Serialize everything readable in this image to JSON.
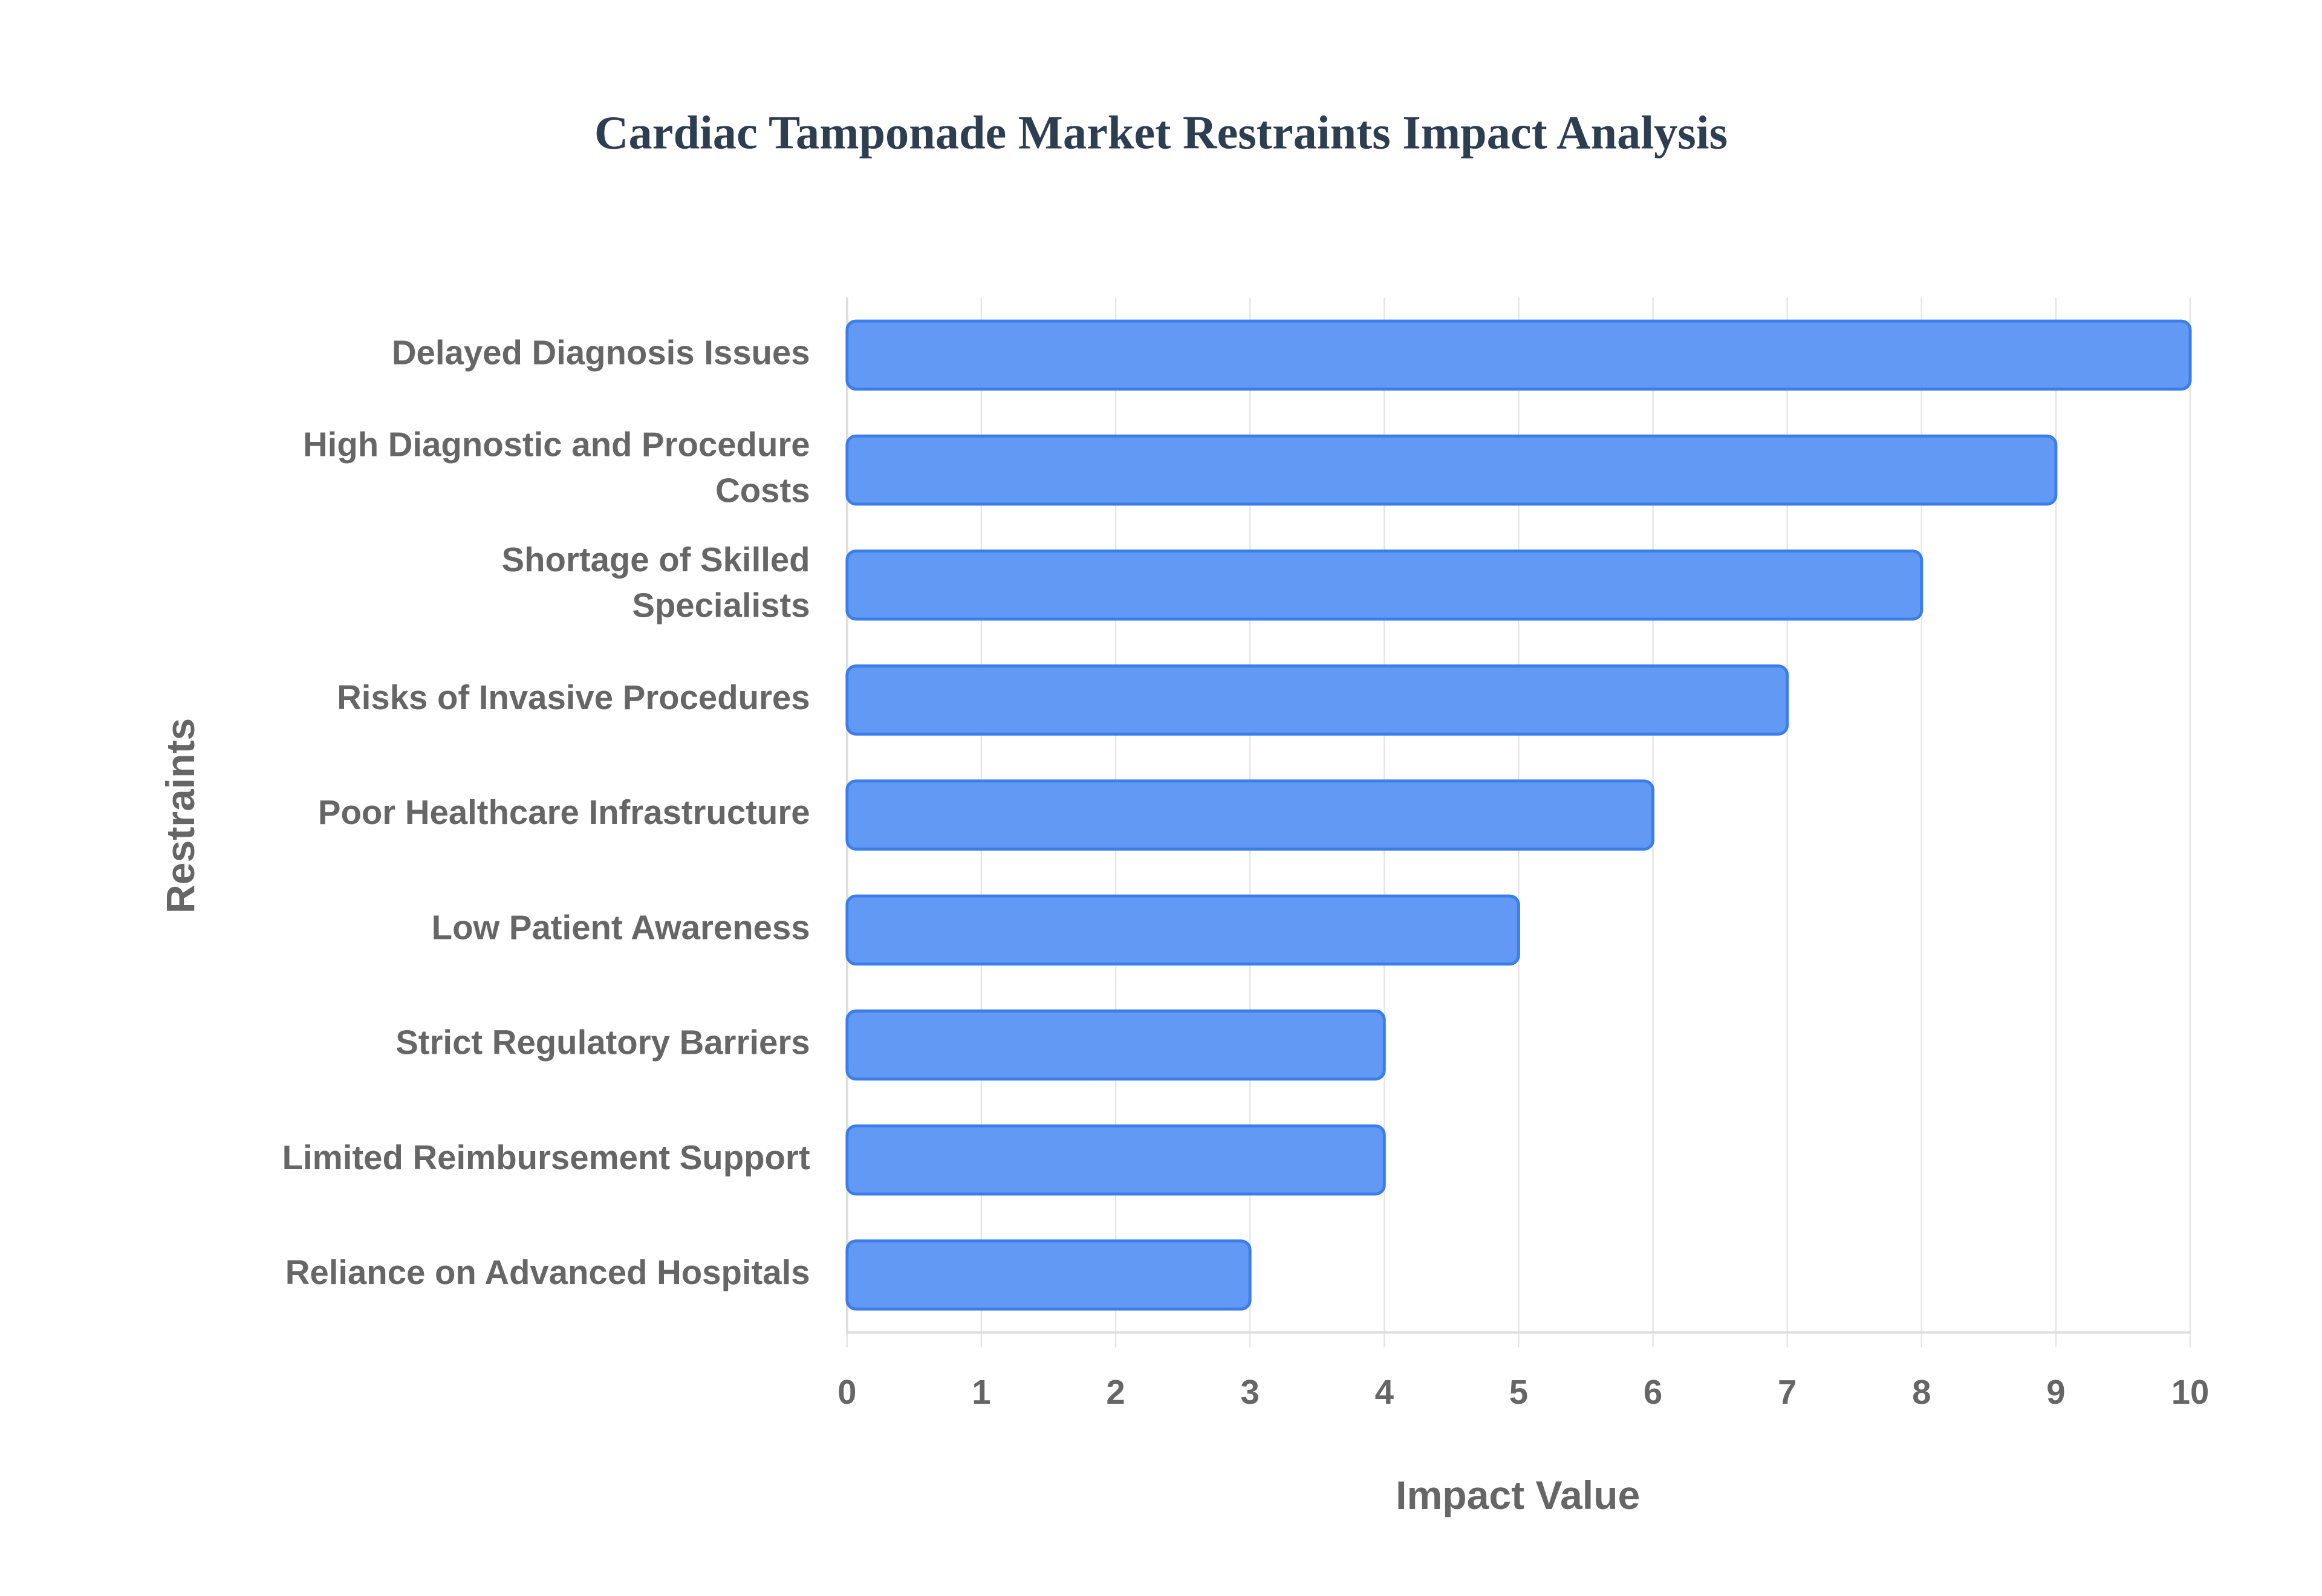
{
  "chart_data": {
    "type": "bar",
    "orientation": "horizontal",
    "title": "Cardiac Tamponade Market Restraints Impact Analysis",
    "x_label": "Impact Value",
    "y_label": "Restraints",
    "categories": [
      [
        "Delayed Diagnosis Issues"
      ],
      [
        "High Diagnostic and Procedure",
        "Costs"
      ],
      [
        "Shortage of Skilled",
        "Specialists"
      ],
      [
        "Risks of Invasive Procedures"
      ],
      [
        "Poor Healthcare Infrastructure"
      ],
      [
        "Low Patient Awareness"
      ],
      [
        "Strict Regulatory Barriers"
      ],
      [
        "Limited Reimbursement Support"
      ],
      [
        "Reliance on Advanced Hospitals"
      ]
    ],
    "values": [
      10,
      9,
      8,
      7,
      6,
      5,
      4,
      4,
      3
    ],
    "color": "#6199f5",
    "border_color": "#3b7de9",
    "xlim": [
      0,
      10
    ],
    "xticks": [
      0,
      1,
      2,
      3,
      4,
      5,
      6,
      7,
      8,
      9,
      10
    ],
    "grid": true
  }
}
